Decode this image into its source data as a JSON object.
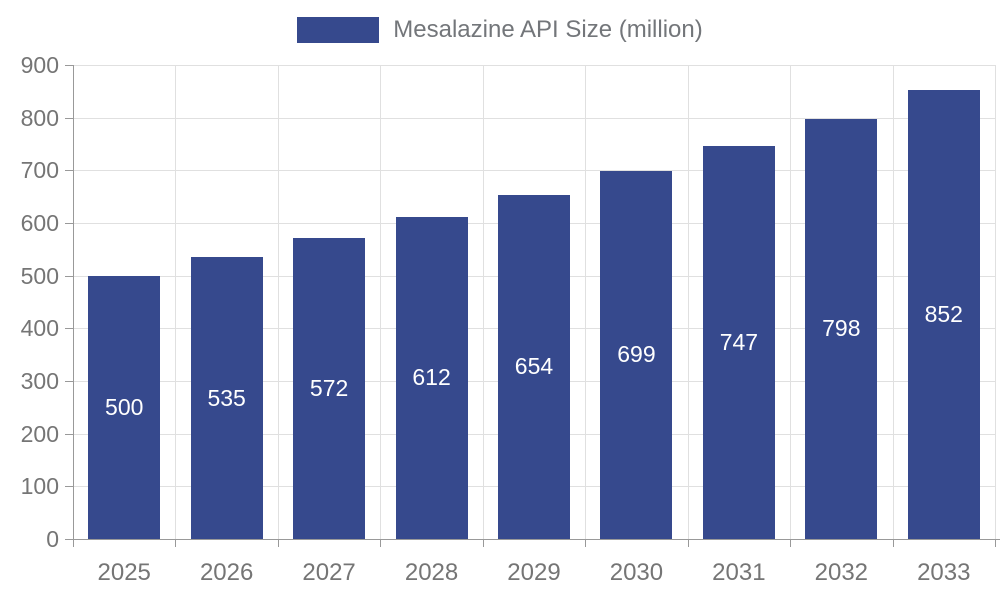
{
  "chart_data": {
    "type": "bar",
    "series_name": "Mesalazine API Size (million)",
    "categories": [
      "2025",
      "2026",
      "2027",
      "2028",
      "2029",
      "2030",
      "2031",
      "2032",
      "2033"
    ],
    "values": [
      500,
      535,
      572,
      612,
      654,
      699,
      747,
      798,
      852
    ],
    "title": "",
    "xlabel": "",
    "ylabel": "",
    "ylim": [
      0,
      900
    ],
    "ytick_step": 100,
    "grid": true,
    "legend_position": "top-center",
    "value_labels": "centered-inside-bars",
    "colors": {
      "bar": "#36498d",
      "value_label": "#ffffff",
      "axis": "#999999",
      "grid": "#e0e0e0",
      "tick_text": "#757575",
      "legend_text": "#73767a",
      "background": "#ffffff"
    }
  }
}
